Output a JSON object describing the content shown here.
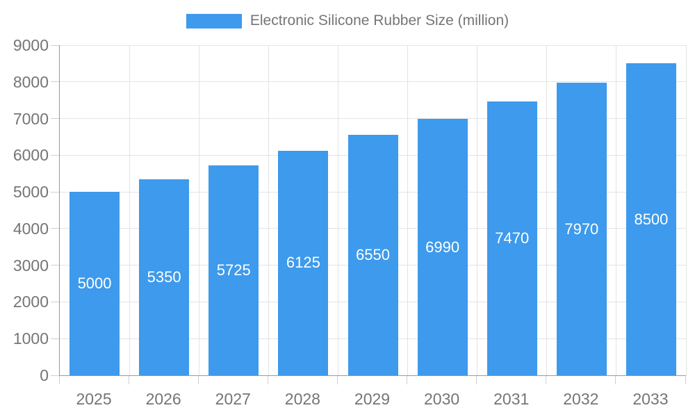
{
  "chart_data": {
    "type": "bar",
    "title": "",
    "legend": "Electronic Silicone Rubber Size (million)",
    "categories": [
      "2025",
      "2026",
      "2027",
      "2028",
      "2029",
      "2030",
      "2031",
      "2032",
      "2033"
    ],
    "values": [
      5000,
      5350,
      5725,
      6125,
      6550,
      6990,
      7470,
      7970,
      8500
    ],
    "xlabel": "",
    "ylabel": "",
    "ylim": [
      0,
      9000
    ],
    "ytick_step": 1000,
    "ytick_labels": [
      "0",
      "1000",
      "2000",
      "3000",
      "4000",
      "5000",
      "6000",
      "7000",
      "8000",
      "9000"
    ],
    "grid": true,
    "legend_position": "top-center",
    "bar_labels_inside": true,
    "colors": {
      "bar": "#3D9AEC",
      "bar_label_text": "#FFFFFF",
      "axis_line": "#999999",
      "tick": "#CFCFCF",
      "gridline": "#E3E3E3",
      "axis_text": "#757575",
      "legend_text": "#757575",
      "background": "#FFFFFF"
    }
  }
}
